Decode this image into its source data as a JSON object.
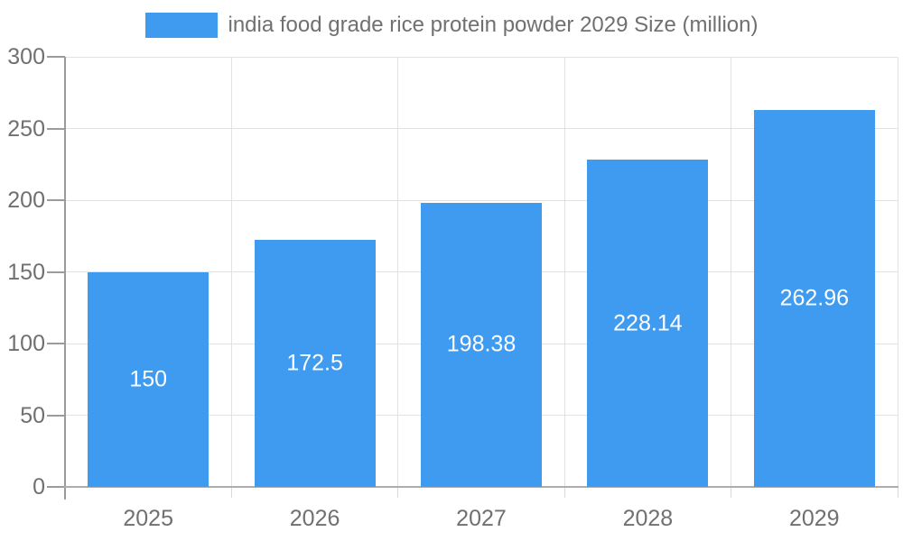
{
  "legend": {
    "label": "india food grade rice protein powder 2029 Size (million)"
  },
  "chart_data": {
    "type": "bar",
    "title": "india food grade rice protein powder 2029 Size (million)",
    "categories": [
      "2025",
      "2026",
      "2027",
      "2028",
      "2029"
    ],
    "values": [
      150,
      172.5,
      198.38,
      228.14,
      262.96
    ],
    "value_labels": [
      "150",
      "172.5",
      "198.38",
      "228.14",
      "262.96"
    ],
    "xlabel": "",
    "ylabel": "",
    "ylim": [
      0,
      300
    ],
    "yticks": [
      0,
      50,
      100,
      150,
      200,
      250,
      300
    ],
    "grid": true,
    "legend_position": "top",
    "bar_color": "#3e9bf0",
    "value_label_color": "#ffffff",
    "axis_text_color": "#707070",
    "grid_color": "#e2e2e2",
    "axis_line_color": "#9b9b9b"
  }
}
